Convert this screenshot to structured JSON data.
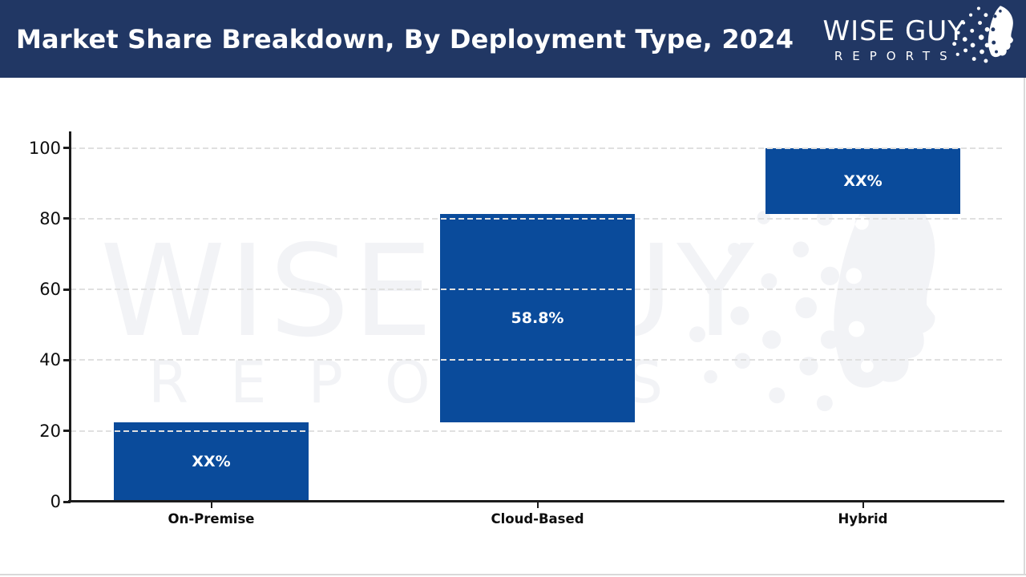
{
  "header": {
    "title": "Market Share Breakdown, By Deployment Type, 2024",
    "background": "#213764",
    "logo": {
      "wordmark": "WISE GUY",
      "sub": "REPORTS"
    }
  },
  "watermark": {
    "wordmark": "WISE GUY",
    "sub": "REPORTS"
  },
  "chart_data": {
    "type": "bar",
    "variant": "floating-segment-waterfall",
    "title": "Market Share Breakdown, By Deployment Type, 2024",
    "xlabel": "",
    "ylabel": "",
    "categories": [
      "On-Premise",
      "Cloud-Based",
      "Hybrid"
    ],
    "segments": [
      {
        "category": "On-Premise",
        "start": 0,
        "end": 22.5,
        "label": "XX%"
      },
      {
        "category": "Cloud-Based",
        "start": 22.5,
        "end": 81.3,
        "label": "58.8%"
      },
      {
        "category": "Hybrid",
        "start": 81.3,
        "end": 100,
        "label": "XX%"
      }
    ],
    "y_ticks": [
      0,
      20,
      40,
      60,
      80,
      100
    ],
    "ylim": [
      0,
      104.6
    ],
    "grid": "horizontal-dashed",
    "legend": "none",
    "bar_color": "#0a4b9b",
    "bar_label_color": "#ffffff",
    "axis_color": "#1c1c1c",
    "gridline_color": "#e0e0e0"
  }
}
